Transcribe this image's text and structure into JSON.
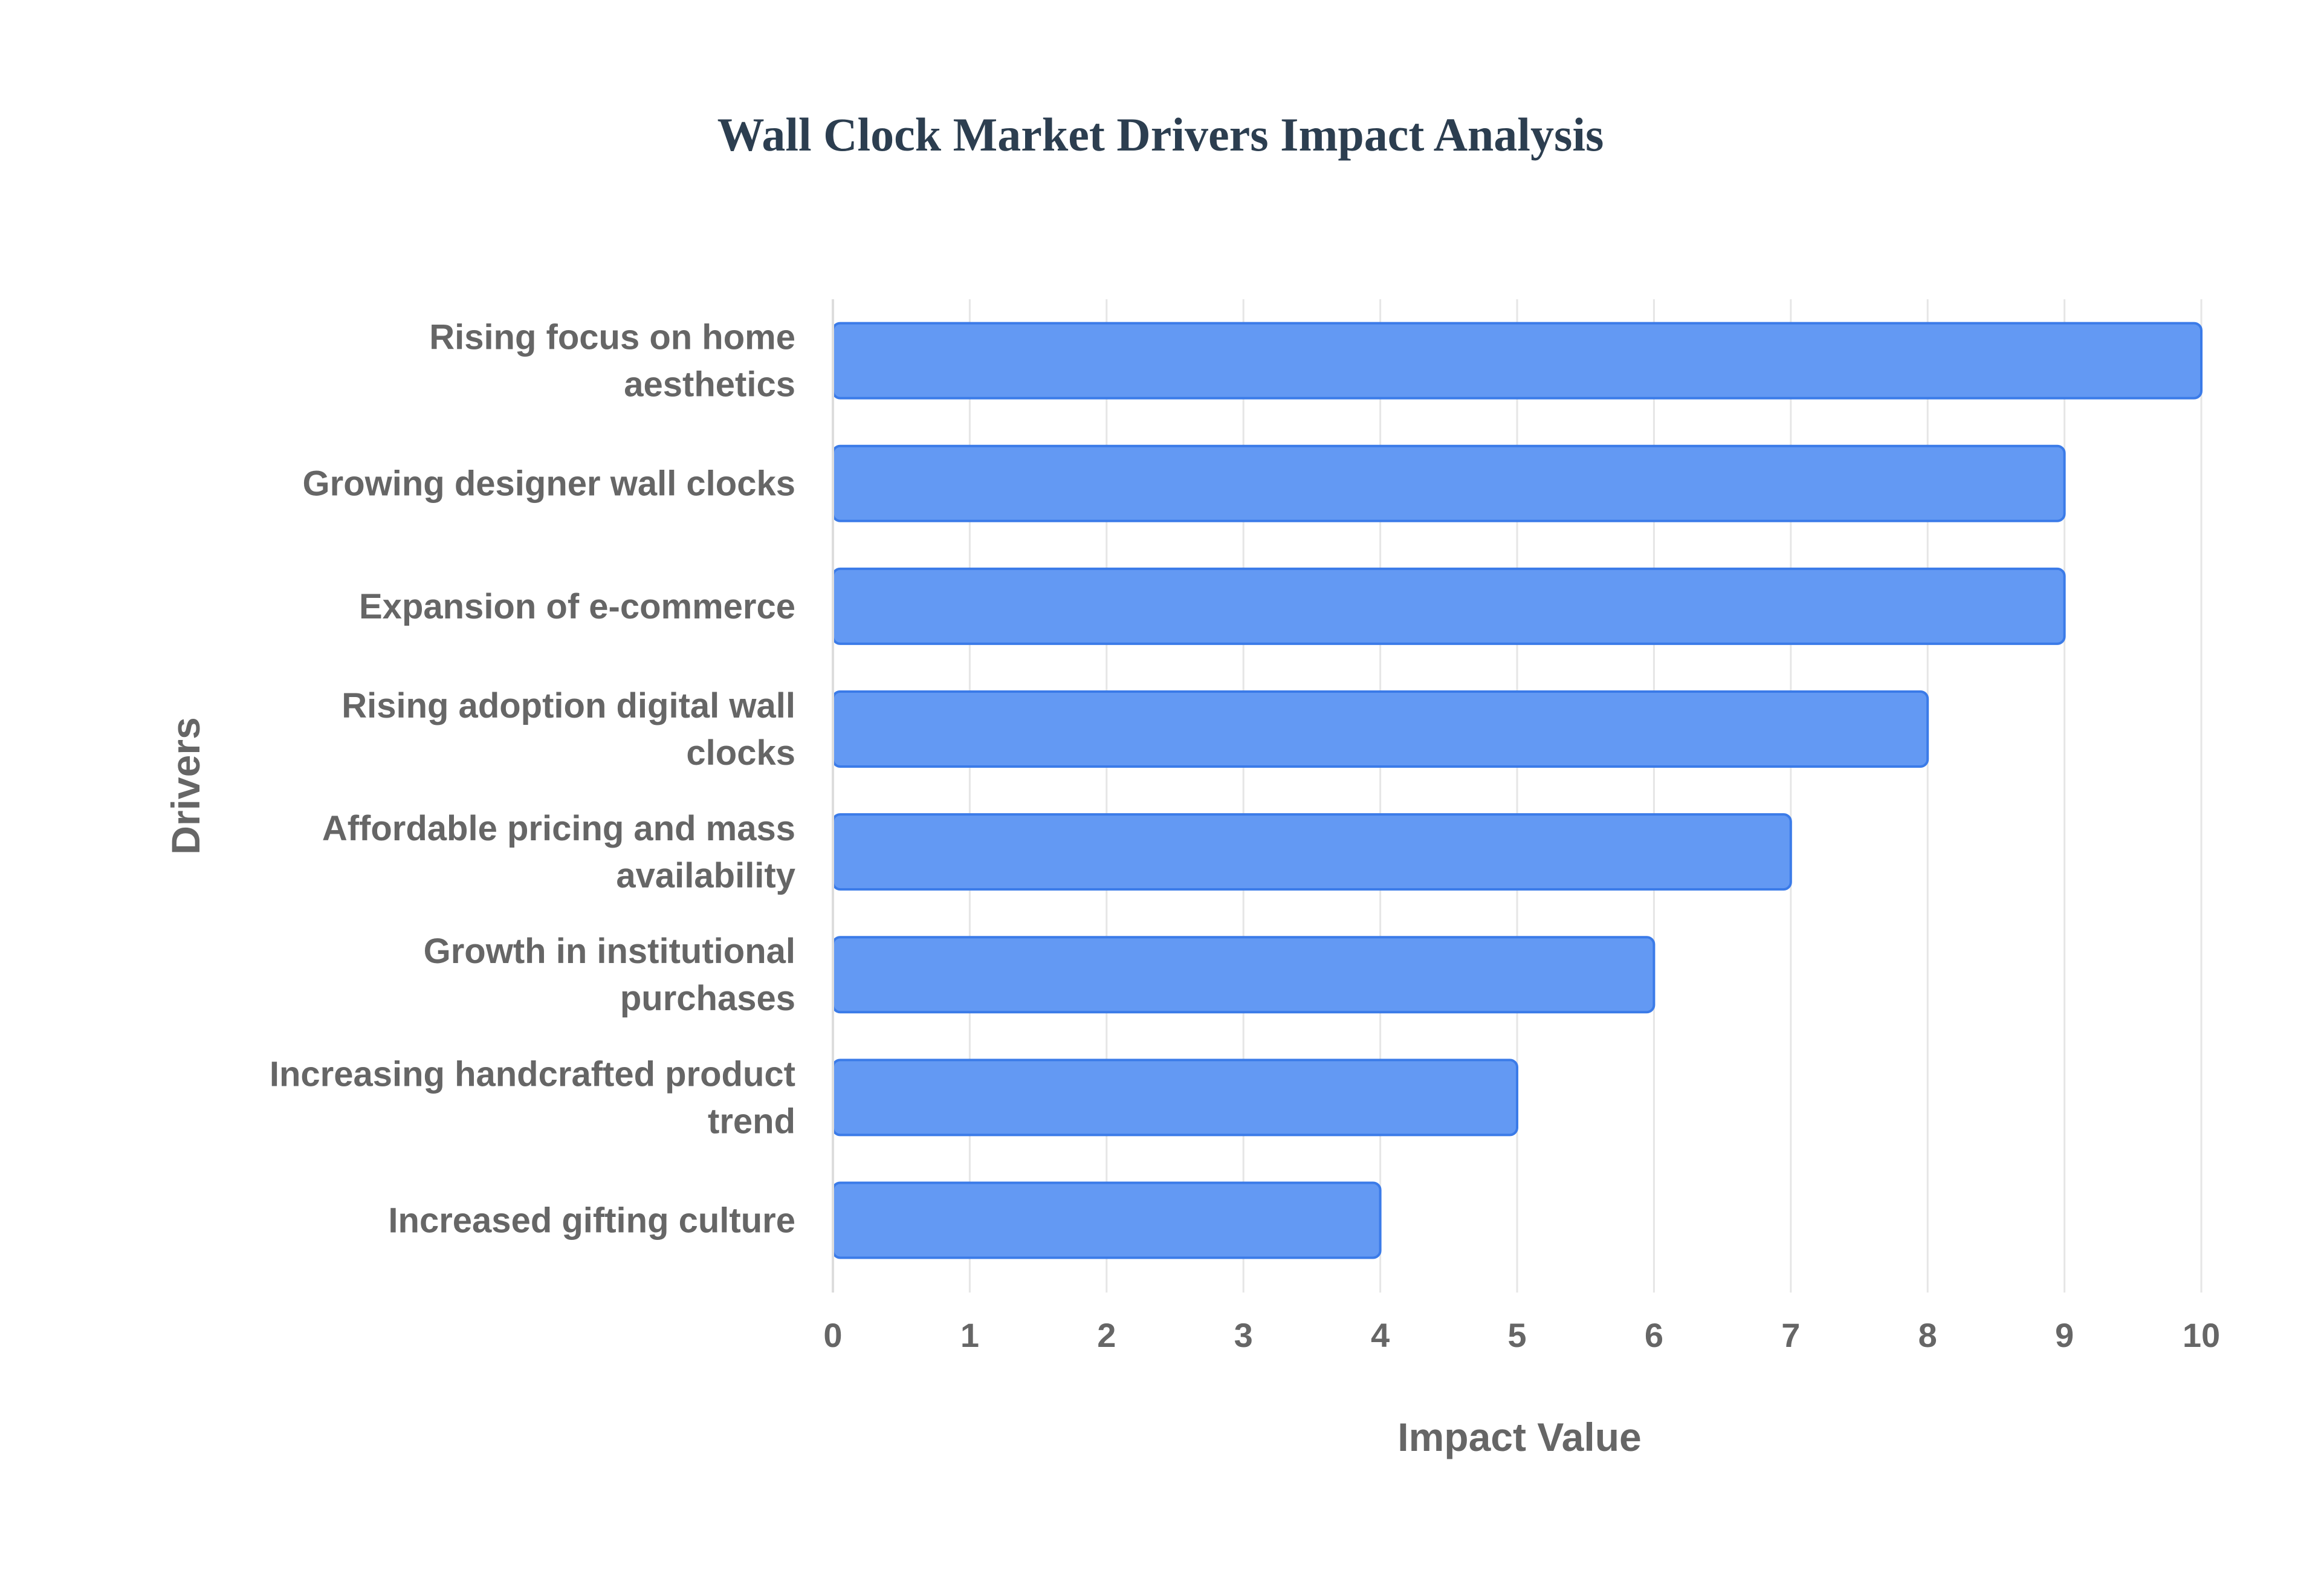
{
  "chart_data": {
    "type": "bar",
    "orientation": "horizontal",
    "title": "Wall Clock Market Drivers Impact Analysis",
    "xlabel": "Impact Value",
    "ylabel": "Drivers",
    "xlim": [
      0,
      10
    ],
    "xticks": [
      "0",
      "1",
      "2",
      "3",
      "4",
      "5",
      "6",
      "7",
      "8",
      "9",
      "10"
    ],
    "grid": true,
    "legend": "none",
    "bar_color": "#6399f3",
    "bar_border_color": "#3b7be8",
    "categories": [
      [
        "Rising focus on home",
        "aesthetics"
      ],
      [
        "Growing designer wall clocks"
      ],
      [
        "Expansion of e-commerce"
      ],
      [
        "Rising adoption digital wall",
        "clocks"
      ],
      [
        "Affordable pricing and mass",
        "availability"
      ],
      [
        "Growth in institutional",
        "purchases"
      ],
      [
        "Increasing handcrafted product",
        "trend"
      ],
      [
        "Increased gifting culture"
      ]
    ],
    "values": [
      10,
      9,
      9,
      8,
      7,
      6,
      5,
      4
    ]
  }
}
